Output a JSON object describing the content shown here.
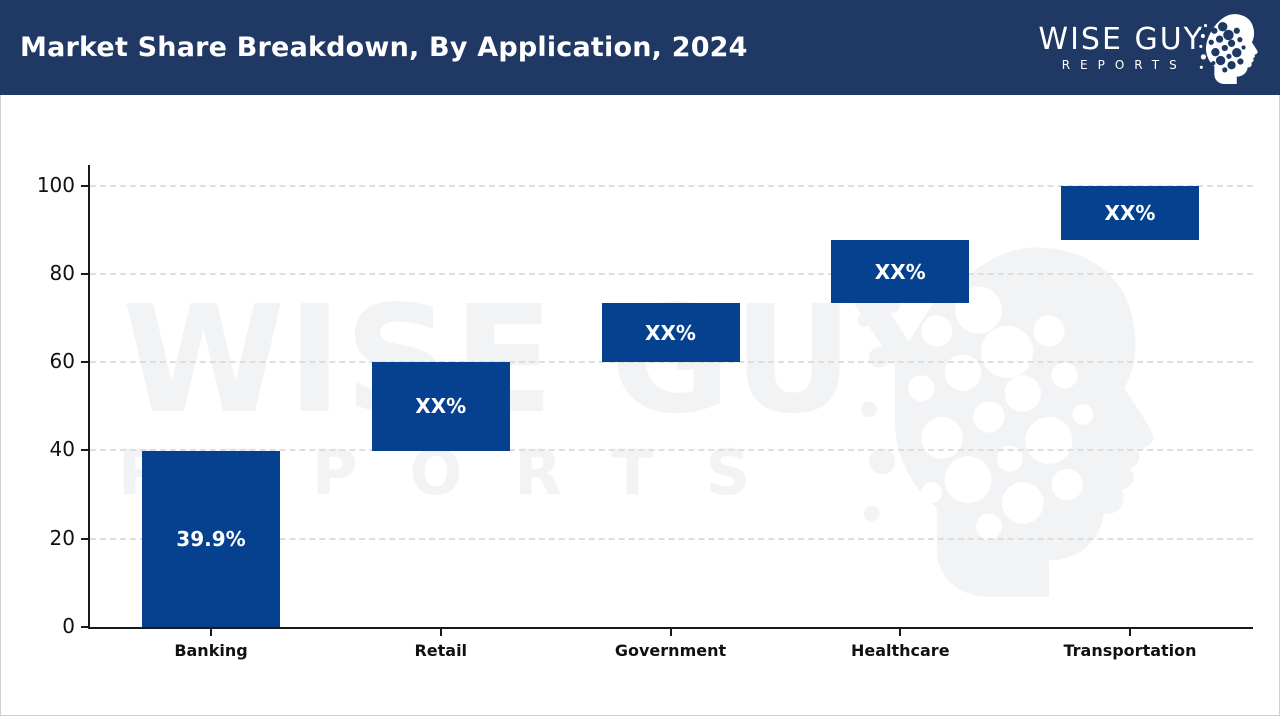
{
  "header": {
    "title": "Market Share Breakdown, By Application, 2024",
    "logo": {
      "line1": "WISE GUY",
      "line2": "REPORTS"
    }
  },
  "watermark": {
    "line1": "WISE GUY",
    "line2": "REPORTS"
  },
  "colors": {
    "header_bg": "#1f3864",
    "bar": "#06418f",
    "bar_label": "#ffffff",
    "grid": "#dedede",
    "axis": "#1a1a1a",
    "watermark": "#f2f3f5"
  },
  "chart_data": {
    "type": "bar",
    "subtype": "waterfall",
    "title": "Market Share Breakdown, By Application, 2024",
    "categories": [
      "Banking",
      "Retail",
      "Government",
      "Healthcare",
      "Transportation"
    ],
    "segments": [
      {
        "category": "Banking",
        "start": 0,
        "end": 39.9,
        "label": "39.9%"
      },
      {
        "category": "Retail",
        "start": 39.9,
        "end": 60.0,
        "label": "XX%"
      },
      {
        "category": "Government",
        "start": 60.0,
        "end": 73.3,
        "label": "XX%"
      },
      {
        "category": "Healthcare",
        "start": 73.3,
        "end": 87.7,
        "label": "XX%"
      },
      {
        "category": "Transportation",
        "start": 87.7,
        "end": 100.0,
        "label": "XX%"
      }
    ],
    "yticks": [
      0,
      20,
      40,
      60,
      80,
      100
    ],
    "ylim": [
      0,
      100
    ],
    "grid": "horizontal-dashed",
    "legend": "none",
    "bar_color": "#06418f",
    "label_color": "#ffffff"
  }
}
